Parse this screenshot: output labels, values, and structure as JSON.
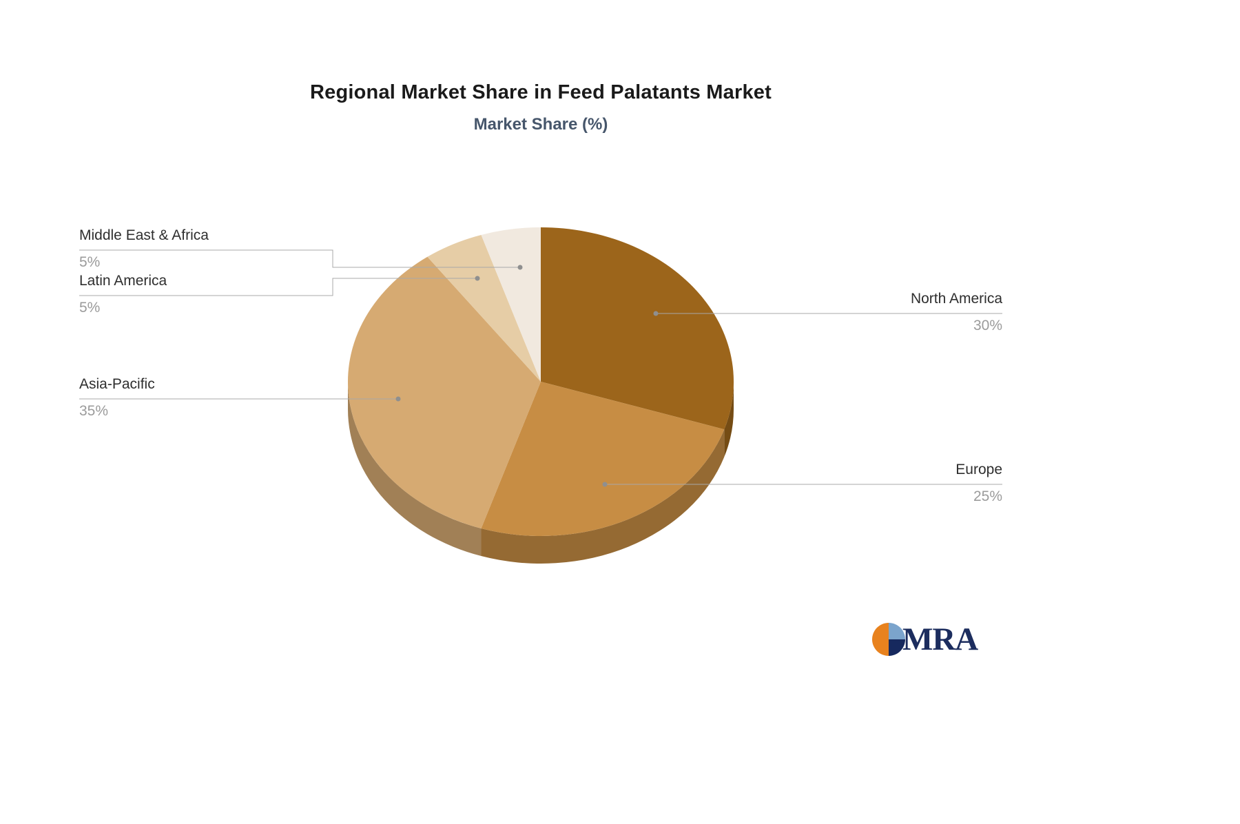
{
  "title": "Regional Market Share in Feed Palatants Market",
  "subtitle": "Market Share (%)",
  "logo": {
    "text": "MRA"
  },
  "chart_data": {
    "type": "pie",
    "title": "Regional Market Share in Feed Palatants Market",
    "subtitle": "Market Share (%)",
    "unit": "%",
    "legend_position": "none",
    "style": "3d",
    "slices": [
      {
        "label": "North America",
        "value": 30,
        "pct_label": "30%",
        "color": "#9c651b"
      },
      {
        "label": "Europe",
        "value": 25,
        "pct_label": "25%",
        "color": "#c78d44"
      },
      {
        "label": "Asia-Pacific",
        "value": 35,
        "pct_label": "35%",
        "color": "#d6aa72"
      },
      {
        "label": "Latin America",
        "value": 5,
        "pct_label": "5%",
        "color": "#e6cda6"
      },
      {
        "label": "Middle East & Africa",
        "value": 5,
        "pct_label": "5%",
        "color": "#f1e9df"
      }
    ]
  }
}
